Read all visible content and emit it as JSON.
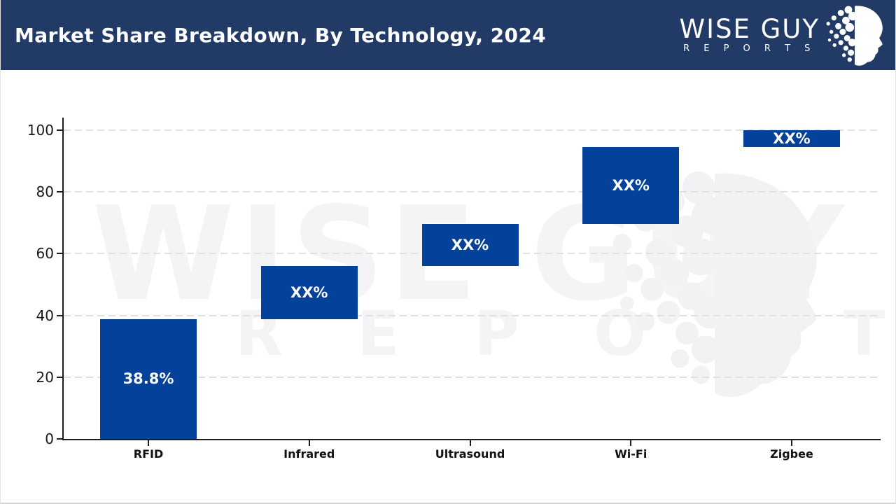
{
  "header": {
    "title": "Market Share Breakdown, By Technology, 2024",
    "bg_color": "#213a66",
    "logo": {
      "line1": "WISE GUY",
      "line2": "R E P O R T S"
    }
  },
  "watermark": {
    "line1": "WISE GUY",
    "line2": "R E P O R T S"
  },
  "chart_data": {
    "type": "bar",
    "variant": "waterfall",
    "title": "Market Share Breakdown, By Technology, 2024",
    "xlabel": "",
    "ylabel": "",
    "categories": [
      "RFID",
      "Infrared",
      "Ultrasound",
      "Wi-Fi",
      "Zigbee"
    ],
    "segments": [
      {
        "category": "RFID",
        "start": 0,
        "end": 38.8,
        "label": "38.8%"
      },
      {
        "category": "Infrared",
        "start": 38.8,
        "end": 56.0,
        "label": "XX%"
      },
      {
        "category": "Ultrasound",
        "start": 56.0,
        "end": 69.6,
        "label": "XX%"
      },
      {
        "category": "Wi-Fi",
        "start": 69.6,
        "end": 94.6,
        "label": "XX%"
      },
      {
        "category": "Zigbee",
        "start": 94.6,
        "end": 100.0,
        "label": "XX%"
      }
    ],
    "ylim": [
      0,
      100
    ],
    "yticks": [
      0,
      20,
      40,
      60,
      80,
      100
    ],
    "grid": "horizontal-dashed",
    "gridline_color": "#dfdfdf",
    "bar_color": "#04419b",
    "bar_label_color": "#ffffff",
    "axis_color": "#1c1c1c",
    "legend": "none"
  }
}
